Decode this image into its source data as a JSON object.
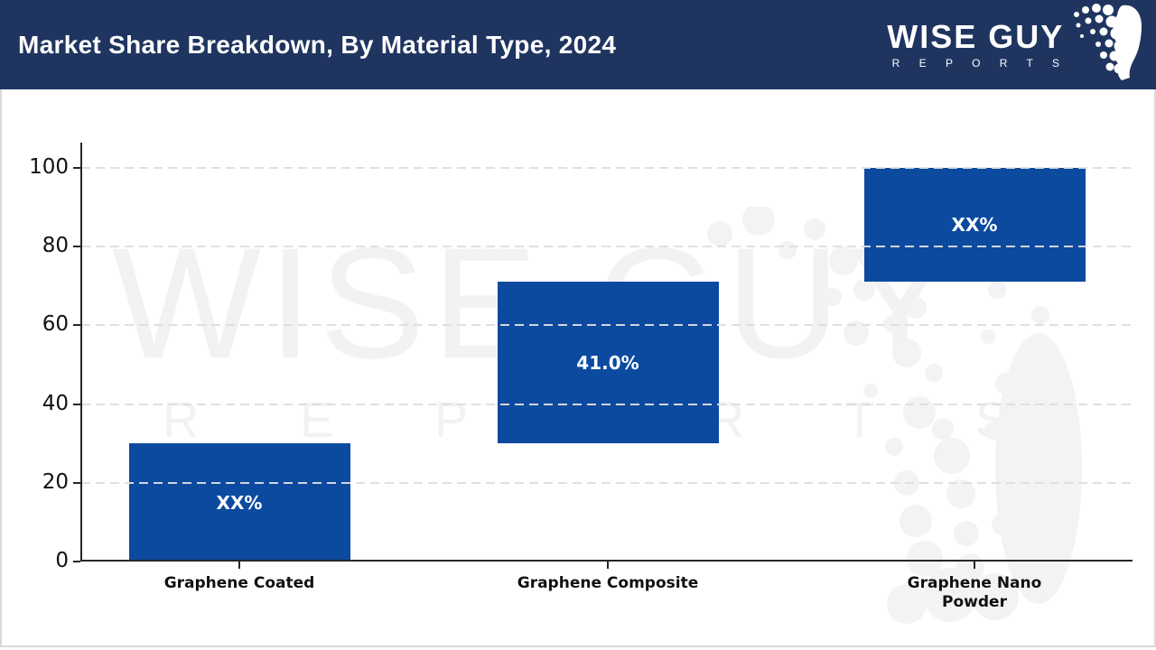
{
  "header": {
    "title": "Market Share Breakdown, By Material Type, 2024",
    "logo": {
      "name1": "WISE GUY",
      "name2": "R E P O R T S"
    }
  },
  "watermark": {
    "line1": "WISE GUY",
    "line2": "R E P O R T S"
  },
  "chart_data": {
    "type": "bar",
    "subtype": "floating-segment-waterfall",
    "title": "Market Share Breakdown, By Material Type, 2024",
    "categories": [
      "Graphene Coated",
      "Graphene Composite",
      "Graphene Nano Powder"
    ],
    "series": [
      {
        "name": "Market share (%)",
        "segments": [
          {
            "category": "Graphene Coated",
            "start": 0,
            "end": 30,
            "label": "XX%"
          },
          {
            "category": "Graphene Composite",
            "start": 30,
            "end": 71,
            "label": "41.0%"
          },
          {
            "category": "Graphene Nano Powder",
            "start": 71,
            "end": 100,
            "label": "XX%"
          }
        ]
      }
    ],
    "ylim": [
      0,
      100
    ],
    "yticks": [
      0,
      20,
      40,
      60,
      80,
      100
    ],
    "xlabel": "",
    "ylabel": "",
    "grid": "horizontal-dashed",
    "legend": "none",
    "bar_color": "#0c4aa0",
    "bar_label_color": "#ffffff"
  },
  "colors": {
    "header_bg": "#1f3560",
    "bar": "#0c4aa0",
    "axis": "#262626",
    "grid": "#dedede",
    "watermark": "#f2f2f4",
    "card_border": "#d9d9d9"
  }
}
